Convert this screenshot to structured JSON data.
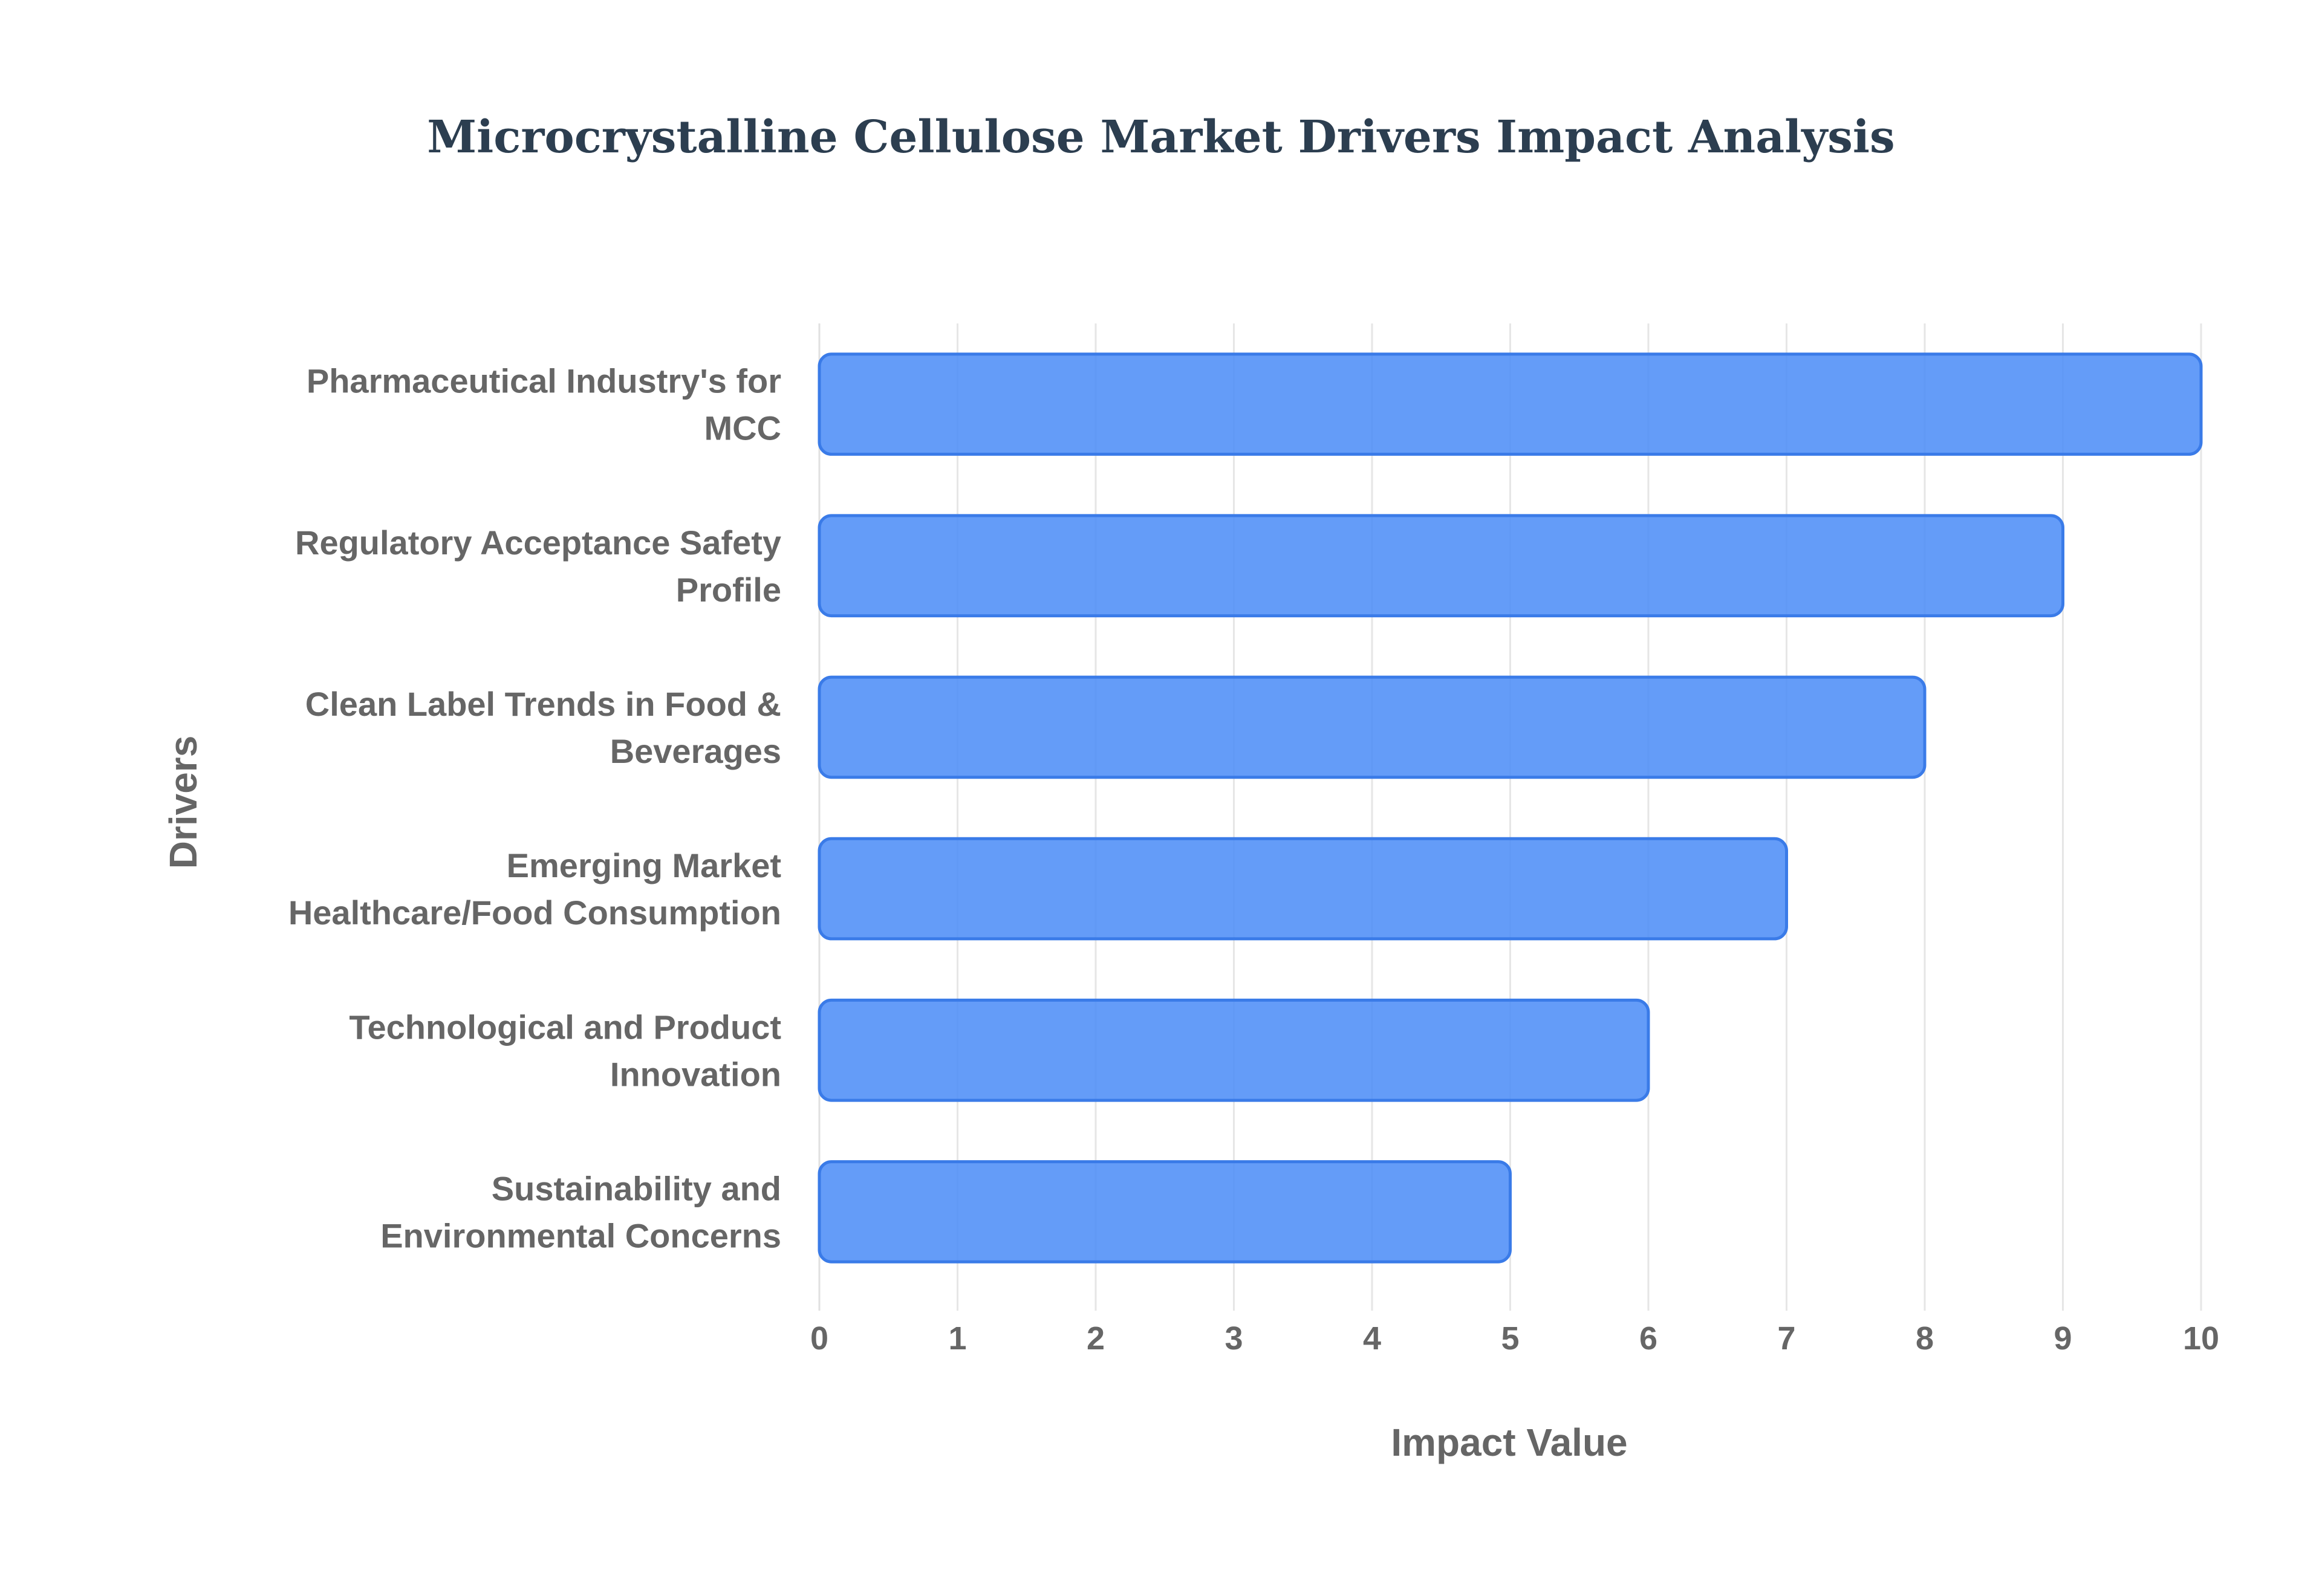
{
  "chart_data": {
    "type": "bar",
    "orientation": "horizontal",
    "title": "Microcrystalline Cellulose Market Drivers Impact Analysis",
    "xlabel": "Impact Value",
    "ylabel": "Drivers",
    "xlim": [
      0,
      10
    ],
    "x_ticks": [
      "0",
      "1",
      "2",
      "3",
      "4",
      "5",
      "6",
      "7",
      "8",
      "9",
      "10"
    ],
    "grid": true,
    "categories": [
      [
        "Pharmaceutical Industry's for",
        "MCC"
      ],
      [
        "Regulatory Acceptance Safety",
        "Profile"
      ],
      [
        "Clean Label Trends in Food &",
        "Beverages"
      ],
      [
        "Emerging Market",
        "Healthcare/Food Consumption"
      ],
      [
        "Technological and Product",
        "Innovation"
      ],
      [
        "Sustainability and",
        "Environmental Concerns"
      ]
    ],
    "values": [
      10,
      9,
      8,
      7,
      6,
      5
    ],
    "colors": {
      "bar_fill": "#4f8ef7",
      "bar_stroke": "#3a7be8",
      "title": "#2c3e50",
      "text": "#666666",
      "grid": "#e6e6e6"
    }
  }
}
